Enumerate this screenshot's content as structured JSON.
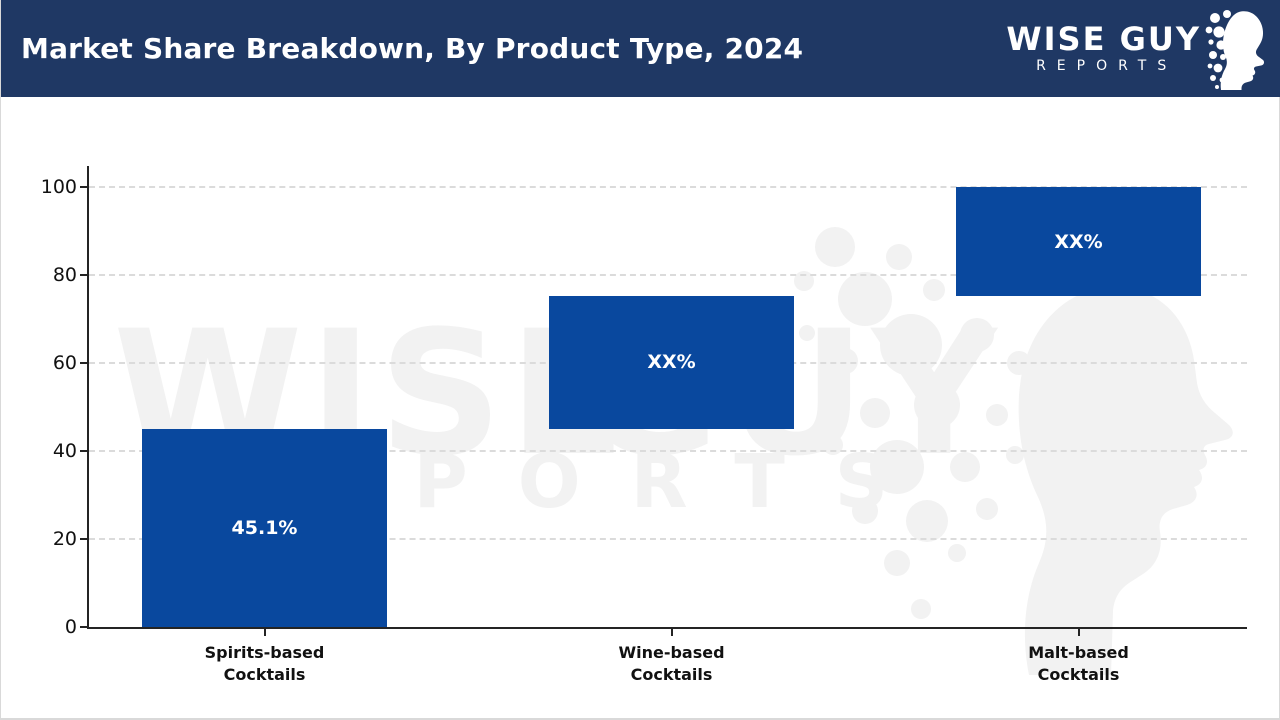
{
  "header": {
    "title": "Market Share Breakdown, By Product Type, 2024",
    "logo": {
      "line1": "WISE GUY",
      "line2": "REPORTS"
    }
  },
  "watermark": {
    "word1": "WISE",
    "word2": "GUY",
    "word3": "REPORTS"
  },
  "colors": {
    "header_bg": "#1f3864",
    "bar": "#09489e",
    "grid": "#dbdbdb",
    "axis": "#242424",
    "watermark": "#f2f2f2",
    "bar_label": "#ffffff"
  },
  "chart_data": {
    "type": "bar",
    "variant": "waterfall",
    "title": "Market Share Breakdown, By Product Type, 2024",
    "categories": [
      "Spirits-based Cocktails",
      "Wine-based Cocktails",
      "Malt-based Cocktails"
    ],
    "category_lines": [
      [
        "Spirits-based",
        "Cocktails"
      ],
      [
        "Wine-based",
        "Cocktails"
      ],
      [
        "Malt-based",
        "Cocktails"
      ]
    ],
    "segments": [
      {
        "category": "Spirits-based Cocktails",
        "start": 0,
        "end": 45.1,
        "label": "45.1%"
      },
      {
        "category": "Wine-based Cocktails",
        "start": 45.1,
        "end": 75.2,
        "label": "XX%"
      },
      {
        "category": "Malt-based Cocktails",
        "start": 75.2,
        "end": 100,
        "label": "XX%"
      }
    ],
    "xlabel": "",
    "ylabel": "",
    "ylim": [
      0,
      105
    ],
    "yticks": [
      0,
      20,
      40,
      60,
      80,
      100
    ],
    "grid": "horizontal-dashed",
    "legend": "none"
  }
}
